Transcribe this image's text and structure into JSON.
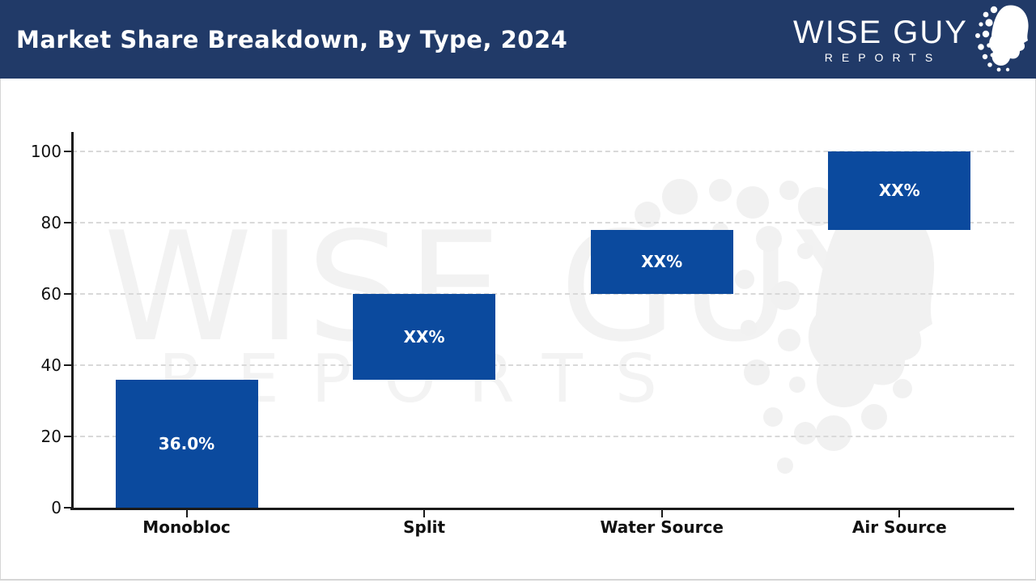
{
  "header": {
    "title": "Market Share Breakdown, By Type, 2024",
    "logo": {
      "main": "WISE GUY",
      "sub": "REPORTS"
    }
  },
  "watermark": {
    "line1": "WISE GUY",
    "line2": "REPORTS"
  },
  "chart_data": {
    "type": "bar",
    "subtype": "waterfall",
    "title": "Market Share Breakdown, By Type, 2024",
    "categories": [
      "Monobloc",
      "Split",
      "Water Source",
      "Air Source"
    ],
    "segments": [
      {
        "category": "Monobloc",
        "start": 0,
        "end": 36,
        "label": "36.0%"
      },
      {
        "category": "Split",
        "start": 36,
        "end": 60,
        "label": "XX%"
      },
      {
        "category": "Water Source",
        "start": 60,
        "end": 78,
        "label": "XX%"
      },
      {
        "category": "Air Source",
        "start": 78,
        "end": 100,
        "label": "XX%"
      }
    ],
    "ylim": [
      0,
      100
    ],
    "yticks": [
      0,
      20,
      40,
      60,
      80,
      100
    ],
    "grid": "horizontal-dashed",
    "legend": "none",
    "bar_color": "#0b4a9e",
    "bar_label_color": "#ffffff",
    "grid_color": "#d9d9d9",
    "axis_color": "#1a1a1a"
  },
  "colors": {
    "header_bg": "#213a68",
    "watermark": "#f2f2f2"
  }
}
